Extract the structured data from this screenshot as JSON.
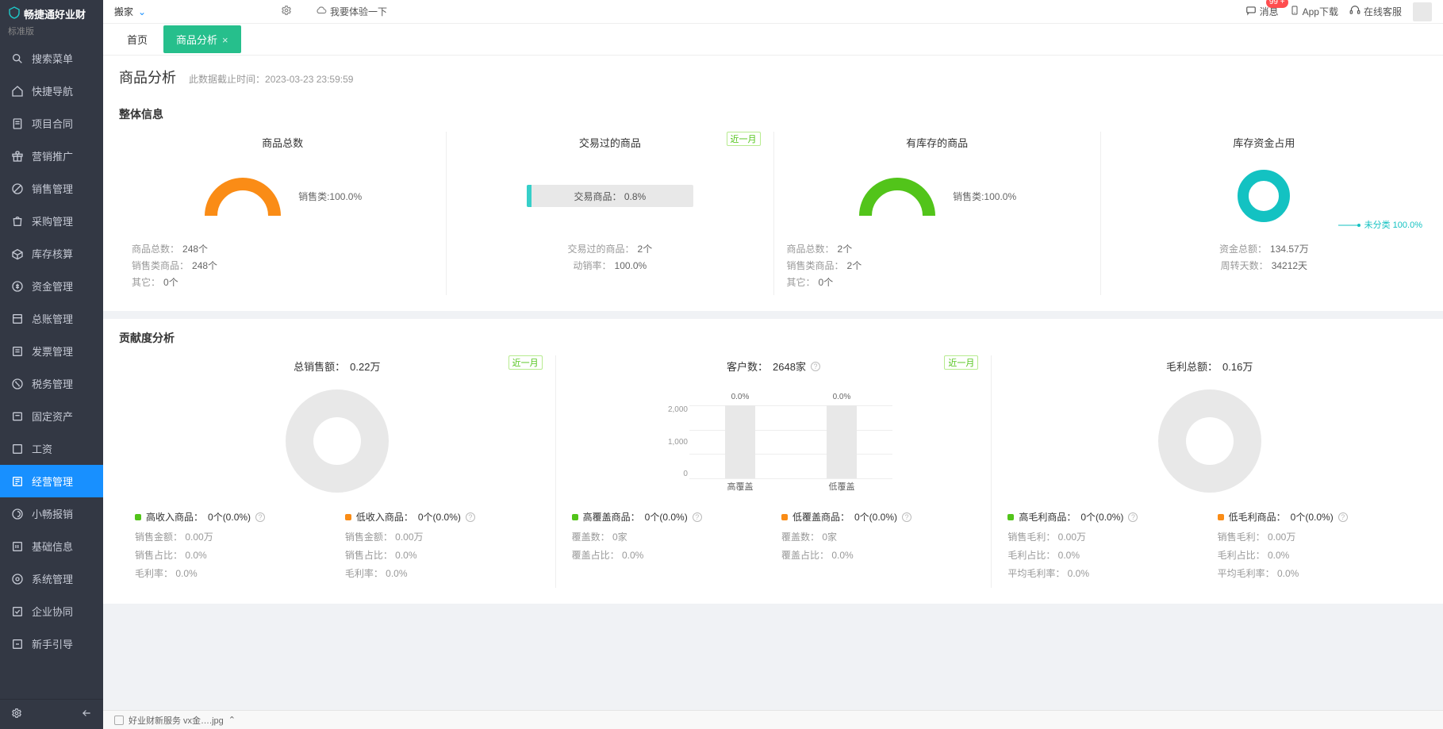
{
  "brand": {
    "name": "畅捷通好业财",
    "edition": "标准版"
  },
  "sidebar": {
    "items": [
      {
        "label": "搜索菜单",
        "icon": "search"
      },
      {
        "label": "快捷导航",
        "icon": "home"
      },
      {
        "label": "项目合同",
        "icon": "file"
      },
      {
        "label": "营销推广",
        "icon": "gift"
      },
      {
        "label": "销售管理",
        "icon": "deny"
      },
      {
        "label": "采购管理",
        "icon": "bag"
      },
      {
        "label": "库存核算",
        "icon": "box"
      },
      {
        "label": "资金管理",
        "icon": "coin"
      },
      {
        "label": "总账管理",
        "icon": "ledger"
      },
      {
        "label": "发票管理",
        "icon": "receipt"
      },
      {
        "label": "税务管理",
        "icon": "tax"
      },
      {
        "label": "固定资产",
        "icon": "asset"
      },
      {
        "label": "工资",
        "icon": "salary"
      },
      {
        "label": "经营管理",
        "icon": "biz"
      },
      {
        "label": "小畅报销",
        "icon": "expense"
      },
      {
        "label": "基础信息",
        "icon": "info"
      },
      {
        "label": "系统管理",
        "icon": "sys"
      },
      {
        "label": "企业协同",
        "icon": "collab"
      },
      {
        "label": "新手引导",
        "icon": "guide"
      }
    ],
    "active_index": 13
  },
  "topbar": {
    "org": "搬家",
    "try_text": "我要体验一下",
    "msg": "消息",
    "msg_badge": "99 +",
    "app": "App下载",
    "service": "在线客服"
  },
  "tabs": [
    {
      "label": "首页",
      "active": false,
      "closable": false
    },
    {
      "label": "商品分析",
      "active": true,
      "closable": true
    }
  ],
  "page": {
    "title": "商品分析",
    "cutoff_label": "此数据截止时间：",
    "cutoff_time": "2023-03-23 23:59:59"
  },
  "overview": {
    "section_title": "整体信息",
    "period_tag": "近一月",
    "cards": {
      "total": {
        "title": "商品总数",
        "gauge": {
          "type": "half_donut",
          "color": "#fa8c16",
          "track": "#f0f0f0",
          "pct": 100
        },
        "side_label": "销售类:100.0%",
        "stats": [
          {
            "k": "商品总数：",
            "v": "248个"
          },
          {
            "k": "销售类商品：",
            "v": "248个"
          },
          {
            "k": "其它：",
            "v": "0个"
          }
        ]
      },
      "traded": {
        "title": "交易过的商品",
        "progress": {
          "label": "交易商品：",
          "pct_text": "0.8%",
          "pct": 0.8,
          "fill": "#36cfc9",
          "track": "#e8e8e8"
        },
        "stats": [
          {
            "k": "交易过的商品：",
            "v": "2个"
          },
          {
            "k": "动销率：",
            "v": "100.0%"
          }
        ]
      },
      "stocked": {
        "title": "有库存的商品",
        "gauge": {
          "type": "half_donut",
          "color": "#52c41a",
          "track": "#f0f0f0",
          "pct": 100
        },
        "side_label": "销售类:100.0%",
        "stats": [
          {
            "k": "商品总数：",
            "v": "2个"
          },
          {
            "k": "销售类商品：",
            "v": "2个"
          },
          {
            "k": "其它：",
            "v": "0个"
          }
        ]
      },
      "capital": {
        "title": "库存资金占用",
        "ring": {
          "color": "#13c2c2",
          "pct": 100,
          "legend": "未分类 100.0%",
          "legend_color": "#13c2c2"
        },
        "stats": [
          {
            "k": "资金总额：",
            "v": "134.57万"
          },
          {
            "k": "周转天数：",
            "v": "34212天"
          }
        ]
      }
    }
  },
  "contribution": {
    "section_title": "贡献度分析",
    "period_tag": "近一月",
    "cards": {
      "sales": {
        "title_label": "总销售额：",
        "title_value": "0.22万",
        "left": {
          "title": "高收入商品：",
          "value": "0个(0.0%)",
          "rows": [
            {
              "k": "销售金额：",
              "v": "0.00万"
            },
            {
              "k": "销售占比：",
              "v": "0.0%"
            },
            {
              "k": "毛利率：",
              "v": "0.0%"
            }
          ]
        },
        "right": {
          "title": "低收入商品：",
          "value": "0个(0.0%)",
          "rows": [
            {
              "k": "销售金额：",
              "v": "0.00万"
            },
            {
              "k": "销售占比：",
              "v": "0.0%"
            },
            {
              "k": "毛利率：",
              "v": "0.0%"
            }
          ]
        }
      },
      "customers": {
        "title_label": "客户数：",
        "title_value": "2648家",
        "chart": {
          "type": "bar",
          "y_ticks": [
            "2,000",
            "1,000",
            "0"
          ],
          "ymax": 2648,
          "categories": [
            "高覆盖",
            "低覆盖"
          ],
          "pct_labels": [
            "0.0%",
            "0.0%"
          ],
          "values": [
            2648,
            2648
          ],
          "bar_color": "#e8e8e8",
          "grid_color": "#eeeeee"
        },
        "left": {
          "title": "高覆盖商品：",
          "value": "0个(0.0%)",
          "rows": [
            {
              "k": "覆盖数：",
              "v": "0家"
            },
            {
              "k": "覆盖占比：",
              "v": "0.0%"
            }
          ]
        },
        "right": {
          "title": "低覆盖商品：",
          "value": "0个(0.0%)",
          "rows": [
            {
              "k": "覆盖数：",
              "v": "0家"
            },
            {
              "k": "覆盖占比：",
              "v": "0.0%"
            }
          ]
        }
      },
      "profit": {
        "title_label": "毛利总额：",
        "title_value": "0.16万",
        "left": {
          "title": "高毛利商品：",
          "value": "0个(0.0%)",
          "rows": [
            {
              "k": "销售毛利：",
              "v": "0.00万"
            },
            {
              "k": "毛利占比：",
              "v": "0.0%"
            },
            {
              "k": "平均毛利率：",
              "v": "0.0%"
            }
          ]
        },
        "right": {
          "title": "低毛利商品：",
          "value": "0个(0.0%)",
          "rows": [
            {
              "k": "销售毛利：",
              "v": "0.00万"
            },
            {
              "k": "毛利占比：",
              "v": "0.0%"
            },
            {
              "k": "平均毛利率：",
              "v": "0.0%"
            }
          ]
        }
      }
    }
  },
  "footer": {
    "filename": "好业财新服务 vx金….jpg"
  }
}
